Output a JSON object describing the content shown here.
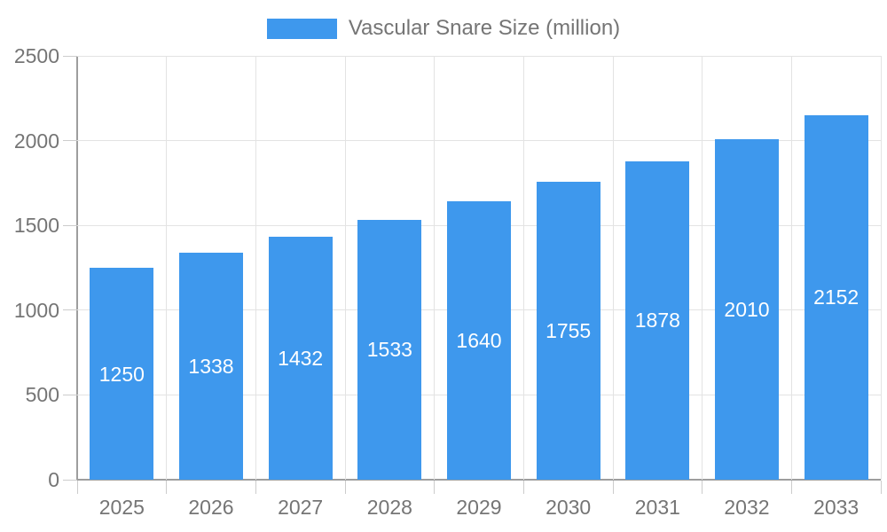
{
  "chart_data": {
    "type": "bar",
    "title": "Vascular Snare Size (million)",
    "categories": [
      "2025",
      "2026",
      "2027",
      "2028",
      "2029",
      "2030",
      "2031",
      "2032",
      "2033"
    ],
    "values": [
      1250,
      1338,
      1432,
      1533,
      1640,
      1755,
      1878,
      2010,
      2152
    ],
    "bar_labels": [
      "1250",
      "1338",
      "1432",
      "1533",
      "1640",
      "1755",
      "1878",
      "2010",
      "2152"
    ],
    "xlabel": "",
    "ylabel": "",
    "ylim": [
      0,
      2500
    ],
    "yticks": [
      0,
      500,
      1000,
      1500,
      2000,
      2500
    ],
    "grid": true,
    "legend_position": "top-center",
    "bar_color": "#3e98ed",
    "value_label_color": "#ffffff",
    "axis_text_color": "#757575",
    "gridline_color": "#e3e3e3",
    "axis_line_color": "#9e9e9e"
  }
}
